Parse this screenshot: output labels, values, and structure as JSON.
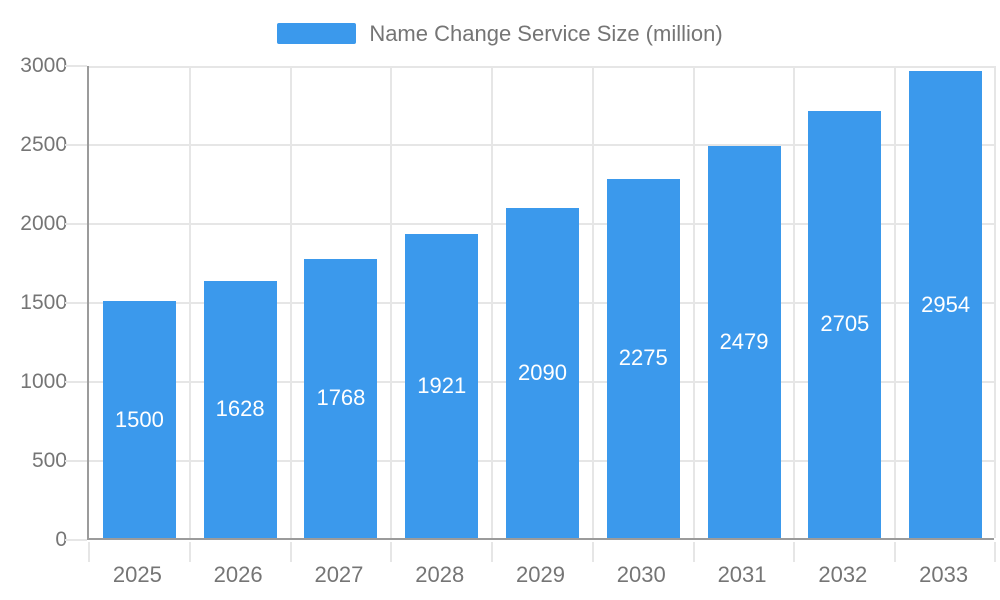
{
  "legend": {
    "label": "Name Change Service Size (million)"
  },
  "chart_data": {
    "type": "bar",
    "title": "Name Change Service Size (million)",
    "categories": [
      "2025",
      "2026",
      "2027",
      "2028",
      "2029",
      "2030",
      "2031",
      "2032",
      "2033"
    ],
    "values": [
      1500,
      1628,
      1768,
      1921,
      2090,
      2275,
      2479,
      2705,
      2954
    ],
    "value_labels": [
      "1500",
      "1628",
      "1768",
      "1921",
      "2090",
      "2275",
      "2479",
      "2705",
      "2954"
    ],
    "xlabel": "",
    "ylabel": "",
    "ylim": [
      0,
      3000
    ],
    "yticks": [
      0,
      500,
      1000,
      1500,
      2000,
      2500,
      3000
    ],
    "grid": true,
    "legend_position": "top-center",
    "colors": {
      "bar": "#3B99EC",
      "axis_line": "#9B9B9B",
      "gridline": "#E6E6E6",
      "tick_text": "#757575",
      "value_label_text": "#FFFFFF",
      "background": "#FFFFFF"
    }
  }
}
